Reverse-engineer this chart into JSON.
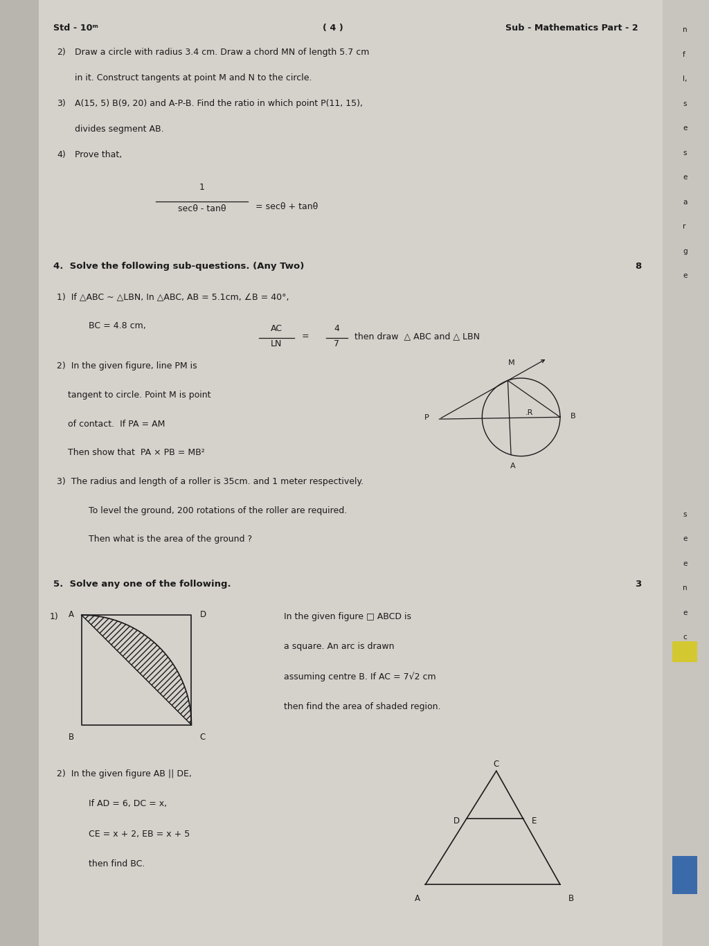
{
  "bg_color": "#d5d1cb",
  "text_color": "#1a1a1a",
  "page_width": 10.24,
  "page_height": 13.66,
  "header_std": "Std - 10ᵐ",
  "header_marks": "( 4 )",
  "header_sub": "Sub - Mathematics Part - 2",
  "spine_right_letters": [
    "n",
    "f",
    "l,",
    "s",
    "e",
    "s",
    "e",
    "a",
    "r",
    "g",
    "e"
  ],
  "spine_right_letters2": [
    "s",
    "e",
    "e",
    "n",
    "e",
    "c"
  ],
  "lines_q3": [
    [
      "2)",
      "Draw a circle with radius 3.4 cm. Draw a chord MN of length 5.7 cm"
    ],
    [
      "",
      "in it. Construct tangents at point M and N to the circle."
    ],
    [
      "3)",
      "A(15, 5) B(9, 20) and A-P-B. Find the ratio in which point P(11, 15),"
    ],
    [
      "",
      "divides segment AB."
    ],
    [
      "4)",
      "Prove that,"
    ]
  ],
  "q4_header": "4.  Solve the following sub-questions. (Any Two)",
  "q4_marks": "8",
  "q4_q1_l1": "1)  If △ABC ~ △LBN, In △ABC, AB = 5.1cm, ∠B = 40°,",
  "q4_q1_l2_pre": "     BC = 4.8 cm,",
  "q4_q1_frac1_top": "AC",
  "q4_q1_frac1_bot": "LN",
  "q4_q1_frac2_top": "4",
  "q4_q1_frac2_bot": "7",
  "q4_q1_l2_post": "then draw  △ ABC and △ LBN",
  "q4_q2_l1": "2)  In the given figure, line PM is",
  "q4_q2_l2": "    tangent to circle. Point M is point",
  "q4_q2_l3": "    of contact.  If PA = AM",
  "q4_q2_l4": "    Then show that  PA × PB = MB²",
  "q4_q3_l1": "3)  The radius and length of a roller is 35cm. and 1 meter respectively.",
  "q4_q3_l2": "     To level the ground, 200 rotations of the roller are required.",
  "q4_q3_l3": "     Then what is the area of the ground ?",
  "q5_header": "5.  Solve any one of the following.",
  "q5_marks": "3",
  "q5_q1_label": "1)",
  "q5_q1_text": [
    "In the given figure □ ABCD is",
    "a square. An arc is drawn",
    "assuming centre B. If AC = 7√2 cm",
    "then find the area of shaded region."
  ],
  "q5_q2_l1": "2)  In the given figure AB || DE,",
  "q5_q2_l2": "     If AD = 6, DC = x,",
  "q5_q2_l3": "     CE = x + 2, EB = x + 5",
  "q5_q2_l4": "     then find BC."
}
